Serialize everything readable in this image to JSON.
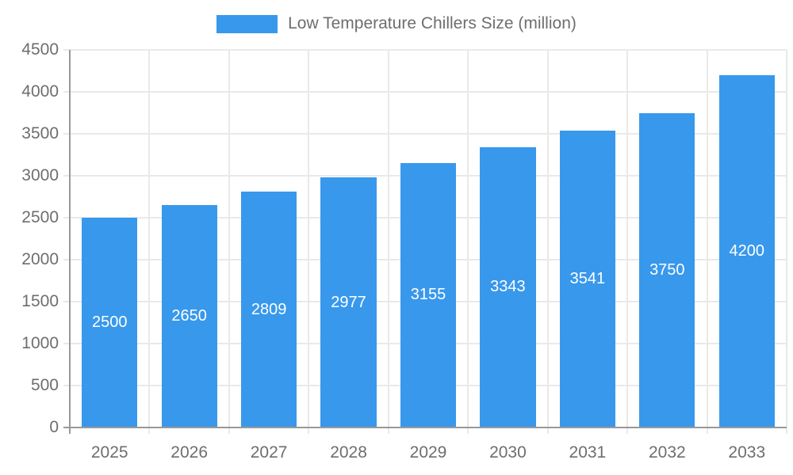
{
  "chart_data": {
    "type": "bar",
    "title": "Low Temperature Chillers Size (million)",
    "categories": [
      "2025",
      "2026",
      "2027",
      "2028",
      "2029",
      "2030",
      "2031",
      "2032",
      "2033"
    ],
    "values": [
      2500,
      2650,
      2809,
      2977,
      3155,
      3343,
      3541,
      3750,
      4200
    ],
    "xlabel": "",
    "ylabel": "",
    "ylim": [
      0,
      4500
    ],
    "yticks": [
      0,
      500,
      1000,
      1500,
      2000,
      2500,
      3000,
      3500,
      4000,
      4500
    ],
    "grid": true,
    "legend_position": "top",
    "value_labels": "inside-center"
  },
  "colors": {
    "bar": "#3898ec",
    "grid": "#e9e9e9",
    "axis": "#999999",
    "tick_text": "#6e6e6e",
    "value_text": "#ffffff",
    "background": "#ffffff"
  }
}
